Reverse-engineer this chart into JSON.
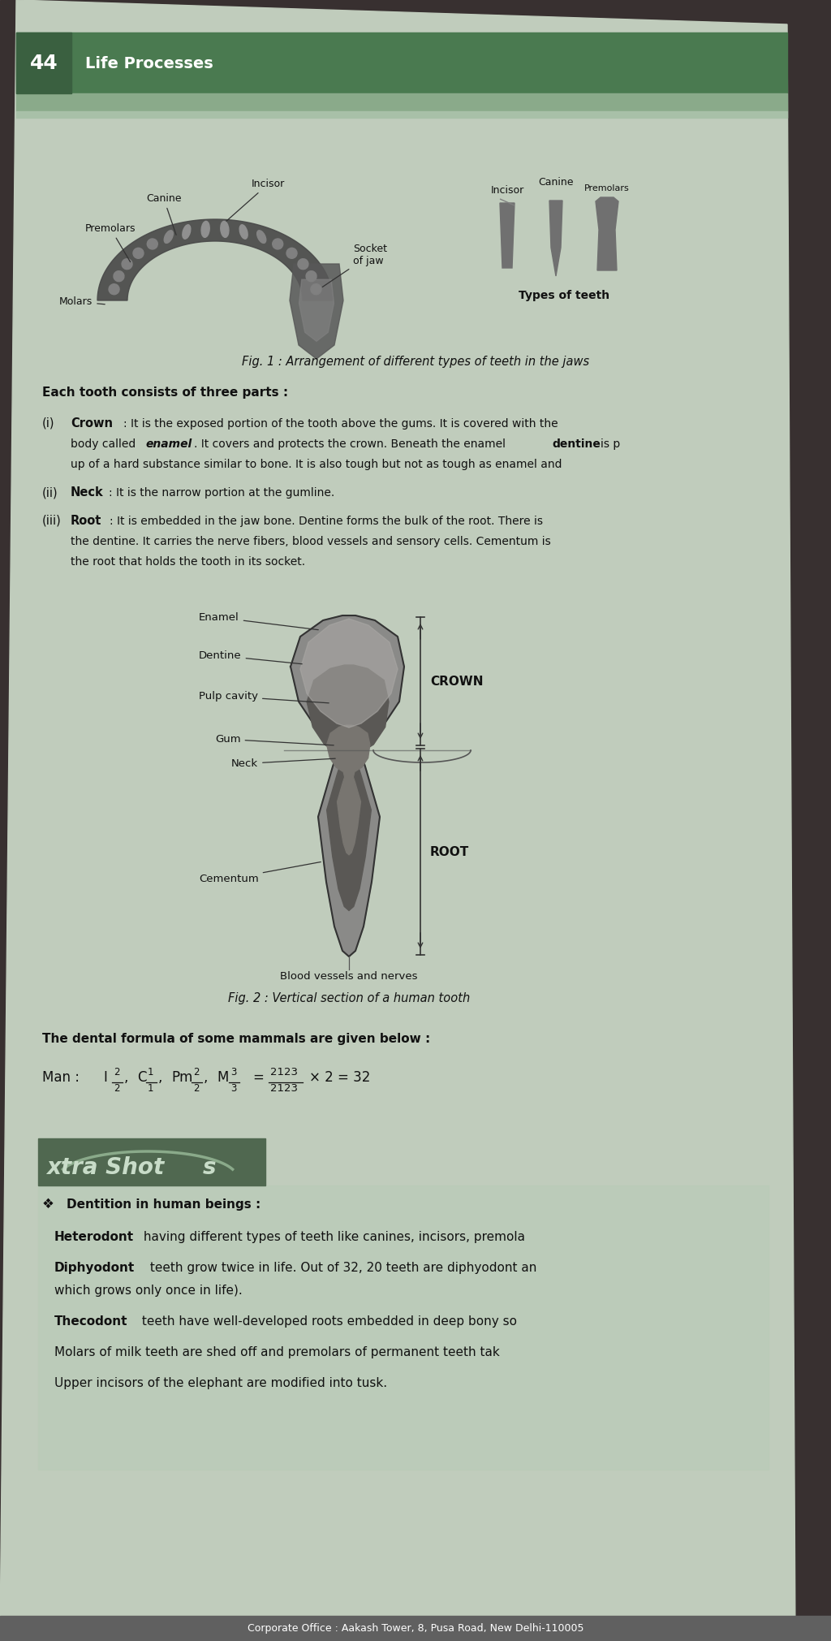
{
  "page_number": "44",
  "header_title": "Life Processes",
  "bg_color": "#b8c4b8",
  "page_bg": "#c8d0c4",
  "content_bg": "#c0ccbc",
  "header_green_dark": "#4a7a50",
  "header_green_light": "#8aaa8a",
  "fig1_caption": "Fig. 1 : Arrangement of different types of teeth in the jaws",
  "each_tooth_heading": "Each tooth consists of three parts :",
  "fig2_caption": "Fig. 2 : Vertical section of a human tooth",
  "dental_formula_heading": "The dental formula of some mammals are given below :",
  "xtra_shots_bg": "#5a7a5a",
  "xtra_shots_text_color": "#c8dcc8",
  "dentition_heading": "Dentition in human beings :",
  "dentition_line1_bold": "Heterodont",
  "dentition_line1_rest": " having different types of teeth like canines, incisors, premola",
  "dentition_line2_bold": "Diphyodont",
  "dentition_line2_rest": " teeth grow twice in life. Out of 32, 20 teeth are diphyodont an",
  "dentition_line2b": "which grows only once in life).",
  "dentition_line3_bold": "Thecodont",
  "dentition_line3_rest": " teeth have well-developed roots embedded in deep bony so",
  "dentition_line4": "Molars of milk teeth are shed off and premolars of permanent teeth tak",
  "dentition_line5": "Upper incisors of the elephant are modified into tusk.",
  "bottom_text": "Corporate Office : Aakash Tower, 8, Pusa Road, New Delhi-110005",
  "tooth_labels": [
    "Enamel",
    "Dentine",
    "Pulp cavity",
    "Gum",
    "Neck",
    "Cementum",
    "Blood vessels and nerves",
    "CROWN",
    "ROOT"
  ],
  "jaw_tooth_color": "#707870",
  "jaw_arch_color": "#585858",
  "text_color": "#1a1a1a",
  "dark_text": "#111111"
}
